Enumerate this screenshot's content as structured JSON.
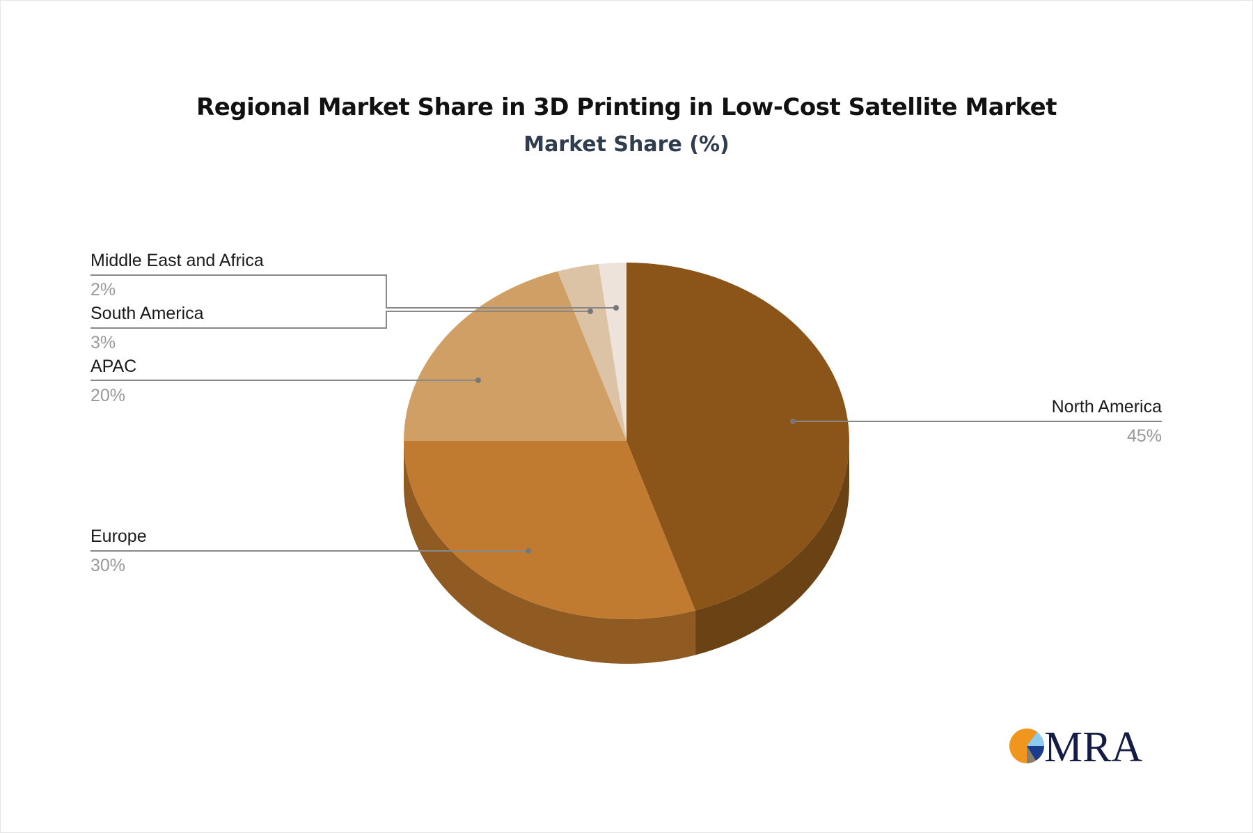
{
  "chart_data": {
    "type": "pie",
    "title": "Regional Market Share in 3D Printing in Low-Cost Satellite Market",
    "subtitle": "Market Share (%)",
    "style": "3d",
    "slices": [
      {
        "label": "North America",
        "value": 45,
        "display": "45%",
        "color": "#8B5419",
        "side_color": "#6A4213"
      },
      {
        "label": "Europe",
        "value": 30,
        "display": "30%",
        "color": "#C07B30",
        "side_color": "#8F5B23"
      },
      {
        "label": "APAC",
        "value": 20,
        "display": "20%",
        "color": "#D09F65",
        "side_color": "#A47B4C"
      },
      {
        "label": "South America",
        "value": 3,
        "display": "3%",
        "color": "#DDC3A5",
        "side_color": "#B39C82"
      },
      {
        "label": "Middle East and Africa",
        "value": 2,
        "display": "2%",
        "color": "#EDE3DA",
        "side_color": "#C7BDB4"
      }
    ]
  },
  "logo": {
    "text": "MRA",
    "colors": [
      "#F0961E",
      "#8ACBEF",
      "#1B3C8C",
      "#8A7E6E",
      "#141B45"
    ]
  }
}
